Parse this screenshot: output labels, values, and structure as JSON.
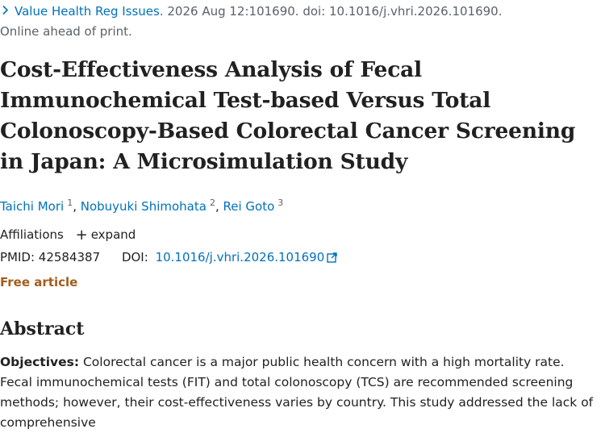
{
  "citation": {
    "journal": "Value Health Reg Issues.",
    "details": " 2026 Aug 12:101690. doi: 10.1016/j.vhri.2026.101690.",
    "status": "Online ahead of print."
  },
  "article": {
    "title": "Cost-Effectiveness Analysis of Fecal Immunochemical Test-based Versus Total Colonoscopy-Based Colorectal Cancer Screening in Japan: A Microsimulation Study"
  },
  "authors": [
    {
      "name": "Taichi Mori",
      "sup": "1"
    },
    {
      "name": "Nobuyuki Shimohata",
      "sup": "2"
    },
    {
      "name": "Rei Goto",
      "sup": "3"
    }
  ],
  "affiliations": {
    "label": "Affiliations",
    "expand_label": "expand"
  },
  "ids": {
    "pmid_label": "PMID:",
    "pmid": "42584387",
    "doi_label": "DOI:",
    "doi": "10.1016/j.vhri.2026.101690"
  },
  "free_article": "Free article",
  "abstract": {
    "heading": "Abstract",
    "objectives_label": "Objectives:",
    "objectives_text": " Colorectal cancer is a major public health concern with a high mortality rate. Fecal immunochemical tests (FIT) and total colonoscopy (TCS) are recommended screening methods; however, their cost-effectiveness varies by country. This study addressed the lack of comprehensive"
  },
  "icons": {
    "journal_link": "chevron-right-icon",
    "expand": "plus-icon",
    "doi_external": "external-link-icon"
  }
}
